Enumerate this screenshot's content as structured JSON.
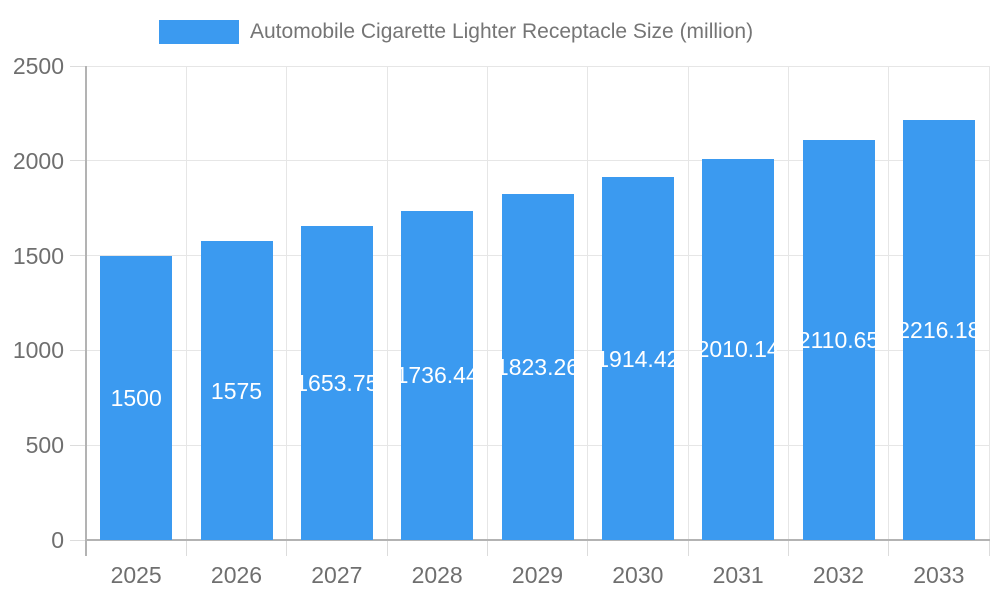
{
  "chart_data": {
    "type": "bar",
    "title": "Automobile Cigarette Lighter Receptacle Size (million)",
    "legend_position": "top",
    "legend_items": [
      {
        "label": "Automobile Cigarette Lighter Receptacle Size (million)",
        "color": "#3B9AF0"
      }
    ],
    "categories": [
      "2025",
      "2026",
      "2027",
      "2028",
      "2029",
      "2030",
      "2031",
      "2032",
      "2033"
    ],
    "values": [
      1500,
      1575,
      1653.75,
      1736.44,
      1823.26,
      1914.42,
      2010.14,
      2110.65,
      2216.18
    ],
    "value_labels": [
      "1500",
      "1575",
      "1653.75",
      "1736.44",
      "1823.26",
      "1914.42",
      "2010.14",
      "2110.65",
      "2216.18"
    ],
    "xlabel": "",
    "ylabel": "",
    "ylim": [
      0,
      2500
    ],
    "ytick_step": 500,
    "yticks": [
      "0",
      "500",
      "1000",
      "1500",
      "2000",
      "2500"
    ],
    "grid": true,
    "colors": {
      "bar": "#3B9AF0",
      "grid": "#e6e6e6",
      "tick": "#dcdcdc",
      "axis": "#b3b3b3",
      "axis_label": "#6f6f6f",
      "legend_text": "#757575",
      "value_label": "#ffffff",
      "background": "#ffffff"
    }
  }
}
